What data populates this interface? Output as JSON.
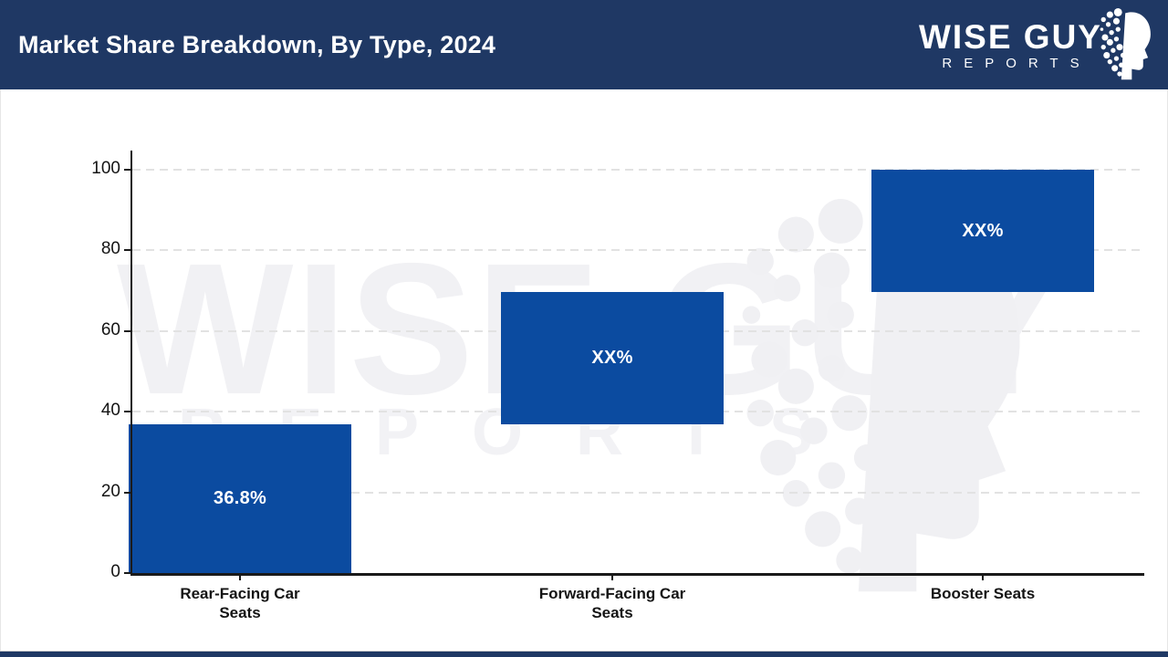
{
  "header": {
    "title": "Market Share Breakdown, By Type, 2024",
    "logo": {
      "line1": "WISE GUY",
      "line2": "REPORTS"
    }
  },
  "watermark": {
    "line1": "WISE GUY",
    "line2": "REPORTS"
  },
  "colors": {
    "header_bg": "#1f3864",
    "footer_bg": "#1f3864",
    "bar": "#0b4ba0",
    "gridline": "#e2e2e2",
    "axis": "#1a1a1a",
    "watermark_text": "#f1f1f4"
  },
  "chart_data": {
    "type": "bar",
    "subtype": "waterfall",
    "title": "Market Share Breakdown, By Type, 2024",
    "categories": [
      "Rear-Facing Car Seats",
      "Forward-Facing Car Seats",
      "Booster Seats"
    ],
    "bars": [
      {
        "category": "Rear-Facing Car Seats",
        "start": 0,
        "end": 36.8,
        "label": "36.8%"
      },
      {
        "category": "Forward-Facing Car Seats",
        "start": 36.8,
        "end": 69.6,
        "label": "XX%"
      },
      {
        "category": "Booster Seats",
        "start": 69.6,
        "end": 100,
        "label": "XX%"
      }
    ],
    "yticks": [
      0,
      20,
      40,
      60,
      80,
      100
    ],
    "ylim": [
      0,
      105
    ],
    "xlabel": "",
    "ylabel": "",
    "grid": "dashed-horizontal",
    "legend": "none"
  }
}
